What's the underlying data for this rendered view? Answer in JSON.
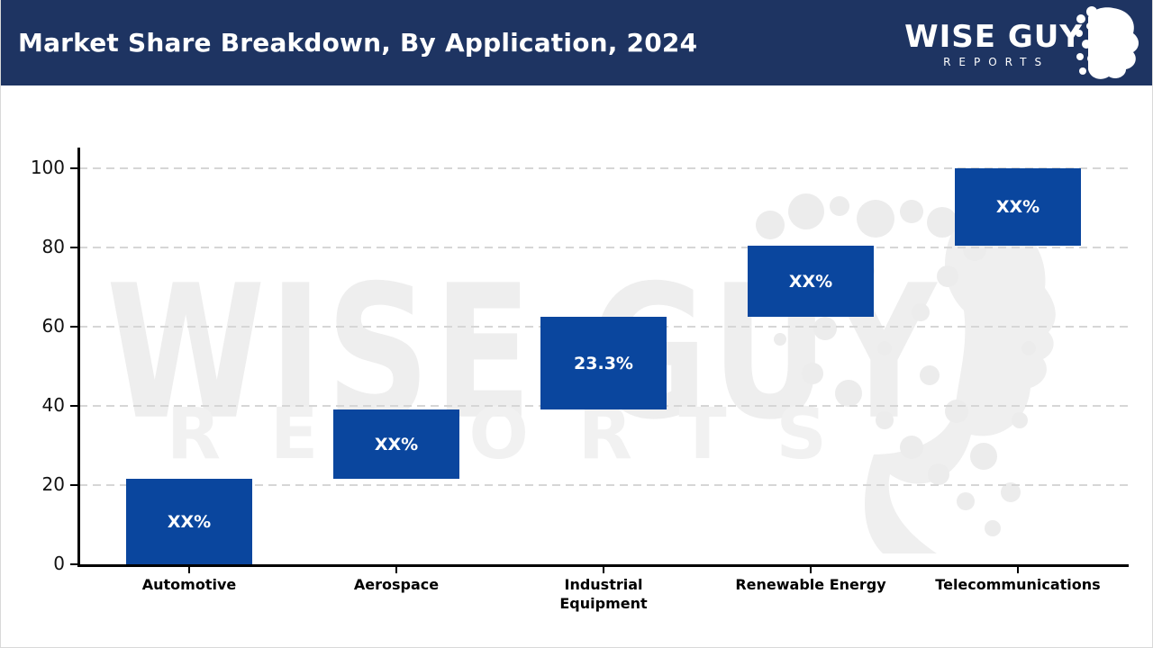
{
  "header": {
    "title": "Market Share Breakdown, By Application, 2024",
    "logo_name": "WISE GUY",
    "logo_sub": "REPORTS"
  },
  "watermark": {
    "line1": "WISE GUY",
    "line2": "REPORTS"
  },
  "chart_data": {
    "type": "bar",
    "subtype": "waterfall",
    "title": "Market Share Breakdown, By Application, 2024",
    "categories": [
      "Automotive",
      "Aerospace",
      "Industrial Equipment",
      "Renewable Energy",
      "Telecommunications"
    ],
    "categories_display": [
      "Automotive",
      "Aerospace",
      "Industrial\nEquipment",
      "Renewable Energy",
      "Telecommunications"
    ],
    "segments": [
      {
        "category": "Automotive",
        "start": 0,
        "end": 21.5,
        "label": "XX%"
      },
      {
        "category": "Aerospace",
        "start": 21.5,
        "end": 39.1,
        "label": "XX%"
      },
      {
        "category": "Industrial Equipment",
        "start": 39.1,
        "end": 62.4,
        "label": "23.3%",
        "value": 23.3
      },
      {
        "category": "Renewable Energy",
        "start": 62.4,
        "end": 80.5,
        "label": "XX%"
      },
      {
        "category": "Telecommunications",
        "start": 80.5,
        "end": 100,
        "label": "XX%"
      }
    ],
    "yticks": [
      0,
      20,
      40,
      60,
      80,
      100
    ],
    "ylim": [
      0,
      105
    ],
    "xlabel": "",
    "ylabel": "",
    "grid": "horizontal-dashed",
    "legend": "none",
    "bar_color": "#0a469e",
    "bar_label_color": "#ffffff",
    "grid_color": "#d6d6d6",
    "axis_color": "#000000"
  }
}
